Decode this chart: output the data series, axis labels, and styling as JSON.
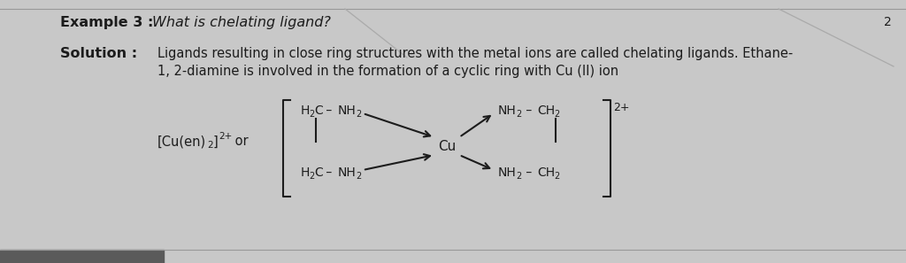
{
  "background_color": "#c8c8c8",
  "content_bg": "#d4d4d4",
  "title_example": "Example 3 :",
  "title_question": "What is chelating ligand?",
  "solution_label": "Solution :",
  "solution_line1": "Ligands resulting in close ring structures with the metal ions are called chelating ligands. Ethane-",
  "solution_line2": "1, 2-diamine is involved in the formation of a cyclic ring with Cu (II) ion",
  "formula_prefix": "[Cu(en)",
  "formula_sub": "2",
  "formula_suffix": "]",
  "formula_sup": "2+",
  "formula_or": " or",
  "cu_label": "Cu",
  "page_number": "2",
  "text_color": "#1c1c1c",
  "bottom_bar_color": "#5a5a5a",
  "line_color": "#888888"
}
